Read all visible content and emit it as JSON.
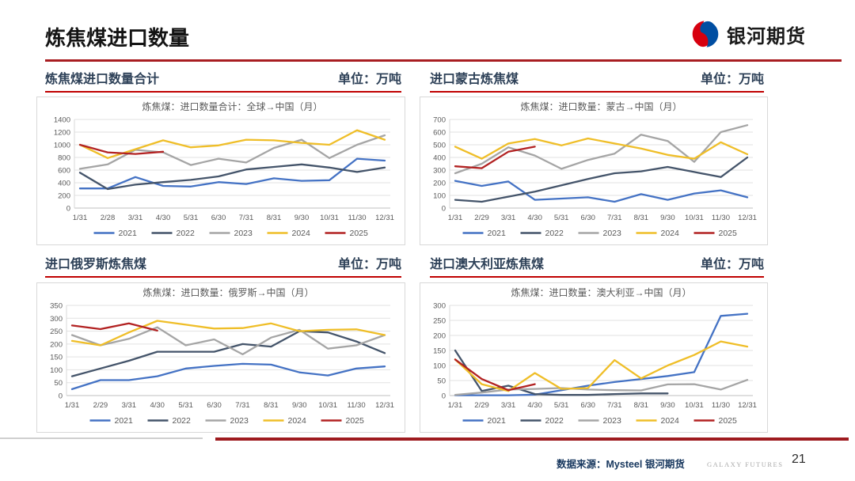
{
  "page": {
    "title": "炼焦煤进口数量",
    "logo_text": "银河期货",
    "footer": {
      "source": "数据来源：Mysteel 银河期货",
      "brand": "GALAXY FUTURES",
      "page_number": "21"
    }
  },
  "colors": {
    "accent_red": "#C00000",
    "header_navy": "#2E4158",
    "rule_dark_red": "#9E1B1F",
    "grid": "#E2E2E2",
    "axis": "#BFBFBF",
    "tick_text": "#595959"
  },
  "chart_data": [
    {
      "type": "line",
      "panel_title": "炼焦煤进口数量合计",
      "unit": "单位：万吨",
      "title": "炼焦煤：进口数量合计：全球→中国（月）",
      "x_labels": [
        "1/31",
        "2/28",
        "3/31",
        "4/30",
        "5/31",
        "6/30",
        "7/31",
        "8/31",
        "9/30",
        "10/31",
        "11/30",
        "12/31"
      ],
      "ylim": [
        0,
        1400
      ],
      "ystep": 200,
      "series": [
        {
          "name": "2021",
          "color": "#4472C4",
          "values": [
            310,
            310,
            490,
            350,
            340,
            410,
            380,
            470,
            430,
            440,
            780,
            750
          ]
        },
        {
          "name": "2022",
          "color": "#44546A",
          "values": [
            560,
            300,
            370,
            410,
            445,
            500,
            610,
            650,
            690,
            640,
            570,
            640
          ]
        },
        {
          "name": "2023",
          "color": "#A5A5A5",
          "values": [
            620,
            690,
            920,
            880,
            680,
            780,
            720,
            950,
            1080,
            790,
            1000,
            1150
          ]
        },
        {
          "name": "2024",
          "color": "#EFBE28",
          "values": [
            1000,
            790,
            930,
            1070,
            960,
            990,
            1080,
            1070,
            1030,
            1000,
            1230,
            1080
          ]
        },
        {
          "name": "2025",
          "color": "#B22222",
          "values": [
            1000,
            880,
            855,
            890
          ]
        }
      ]
    },
    {
      "type": "line",
      "panel_title": "进口蒙古炼焦煤",
      "unit": "单位：万吨",
      "title": "炼焦煤：进口数量：蒙古→中国（月）",
      "x_labels": [
        "1/31",
        "2/29",
        "3/31",
        "4/30",
        "5/31",
        "6/30",
        "7/31",
        "8/31",
        "9/30",
        "10/31",
        "11/30",
        "12/31"
      ],
      "ylim": [
        0,
        700
      ],
      "ystep": 100,
      "series": [
        {
          "name": "2021",
          "color": "#4472C4",
          "values": [
            215,
            175,
            210,
            65,
            75,
            85,
            50,
            110,
            65,
            115,
            140,
            85
          ]
        },
        {
          "name": "2022",
          "color": "#44546A",
          "values": [
            65,
            50,
            90,
            130,
            180,
            230,
            275,
            290,
            325,
            285,
            245,
            400
          ]
        },
        {
          "name": "2023",
          "color": "#A5A5A5",
          "values": [
            275,
            350,
            480,
            415,
            310,
            380,
            430,
            580,
            530,
            365,
            600,
            655
          ]
        },
        {
          "name": "2024",
          "color": "#EFBE28",
          "values": [
            485,
            390,
            510,
            545,
            495,
            550,
            510,
            470,
            420,
            390,
            520,
            425
          ]
        },
        {
          "name": "2025",
          "color": "#B22222",
          "values": [
            330,
            315,
            445,
            485
          ]
        }
      ]
    },
    {
      "type": "line",
      "panel_title": "进口俄罗斯炼焦煤",
      "unit": "单位：万吨",
      "title": "炼焦煤：进口数量：俄罗斯→中国（月）",
      "x_labels": [
        "1/31",
        "2/29",
        "3/31",
        "4/30",
        "5/31",
        "6/30",
        "7/31",
        "8/31",
        "9/30",
        "10/31",
        "11/30",
        "12/31"
      ],
      "ylim": [
        0,
        350
      ],
      "ystep": 50,
      "series": [
        {
          "name": "2021",
          "color": "#4472C4",
          "values": [
            25,
            60,
            60,
            75,
            105,
            115,
            123,
            120,
            90,
            78,
            105,
            113
          ]
        },
        {
          "name": "2022",
          "color": "#44546A",
          "values": [
            75,
            105,
            135,
            170,
            170,
            170,
            200,
            190,
            250,
            245,
            210,
            165
          ]
        },
        {
          "name": "2023",
          "color": "#A5A5A5",
          "values": [
            235,
            195,
            220,
            265,
            195,
            218,
            160,
            225,
            255,
            182,
            195,
            235
          ]
        },
        {
          "name": "2024",
          "color": "#EFBE28",
          "values": [
            212,
            195,
            245,
            290,
            275,
            260,
            262,
            280,
            250,
            255,
            257,
            235
          ]
        },
        {
          "name": "2025",
          "color": "#B22222",
          "values": [
            272,
            258,
            280,
            252
          ]
        }
      ]
    },
    {
      "type": "line",
      "panel_title": "进口澳大利亚炼焦煤",
      "unit": "单位：万吨",
      "title": "炼焦煤：进口数量：澳大利亚→中国（月）",
      "x_labels": [
        "1/31",
        "2/29",
        "3/31",
        "4/30",
        "5/31",
        "6/30",
        "7/31",
        "8/31",
        "9/30",
        "10/31",
        "11/30",
        "12/31"
      ],
      "ylim": [
        0,
        300
      ],
      "ystep": 50,
      "series": [
        {
          "name": "2021",
          "color": "#4472C4",
          "values": [
            1,
            1,
            1,
            3,
            18,
            33,
            45,
            55,
            65,
            78,
            265,
            272
          ]
        },
        {
          "name": "2022",
          "color": "#44546A",
          "values": [
            150,
            15,
            33,
            5,
            2,
            2,
            5,
            7,
            7,
            null,
            null,
            null
          ]
        },
        {
          "name": "2023",
          "color": "#A5A5A5",
          "values": [
            2,
            10,
            20,
            22,
            25,
            20,
            18,
            17,
            37,
            38,
            20,
            52
          ]
        },
        {
          "name": "2024",
          "color": "#EFBE28",
          "values": [
            120,
            38,
            15,
            75,
            22,
            25,
            118,
            57,
            100,
            135,
            180,
            163
          ]
        },
        {
          "name": "2025",
          "color": "#B22222",
          "values": [
            120,
            55,
            18,
            38
          ]
        }
      ]
    }
  ]
}
